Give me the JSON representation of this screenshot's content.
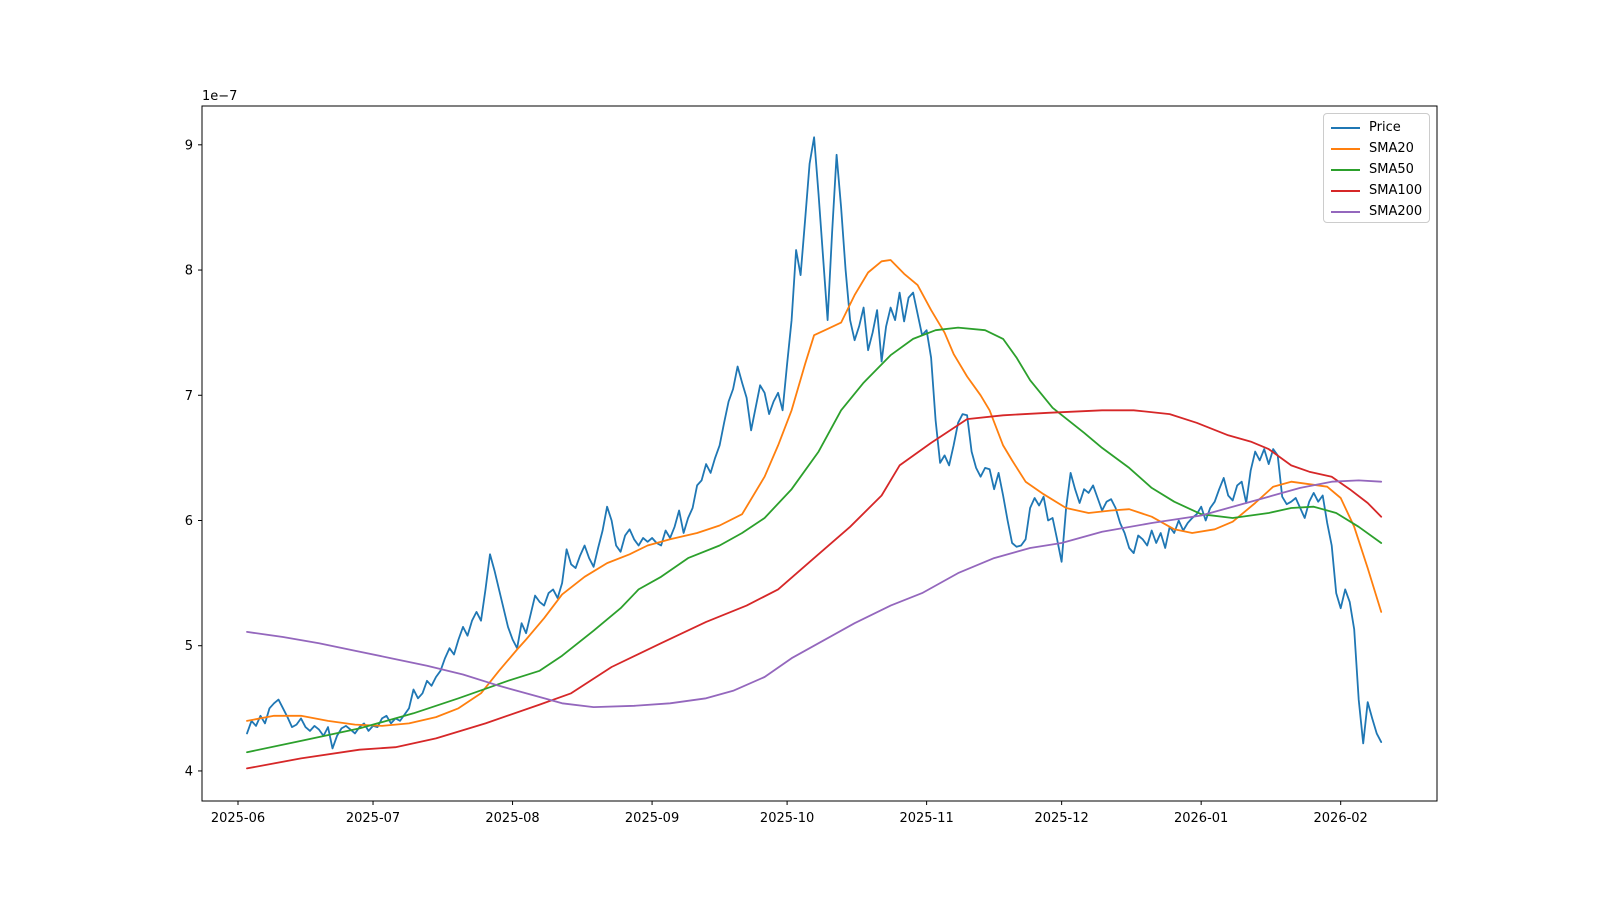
{
  "figure": {
    "background": "#ffffff",
    "axes_color": "#000000"
  },
  "chart_data": {
    "type": "line",
    "title": "",
    "xlabel": "",
    "ylabel": "",
    "y_offset_label": "1e−7",
    "grid": false,
    "legend_position": "upper right",
    "x_unit": "days since 2025-06-03",
    "x_range_dates": [
      "2025-06-03",
      "2026-02-10"
    ],
    "xlim": [
      -10,
      264.4
    ],
    "ylim": [
      3.76,
      9.31
    ],
    "x_ticks": [
      {
        "day": -2,
        "label": "2025-06"
      },
      {
        "day": 28,
        "label": "2025-07"
      },
      {
        "day": 59,
        "label": "2025-08"
      },
      {
        "day": 90,
        "label": "2025-09"
      },
      {
        "day": 120,
        "label": "2025-10"
      },
      {
        "day": 151,
        "label": "2025-11"
      },
      {
        "day": 181,
        "label": "2025-12"
      },
      {
        "day": 212,
        "label": "2026-01"
      },
      {
        "day": 243,
        "label": "2026-02"
      }
    ],
    "y_ticks": [
      {
        "value": 4,
        "label": "4"
      },
      {
        "value": 5,
        "label": "5"
      },
      {
        "value": 6,
        "label": "6"
      },
      {
        "value": 7,
        "label": "7"
      },
      {
        "value": 8,
        "label": "8"
      },
      {
        "value": 9,
        "label": "9"
      }
    ],
    "series": [
      {
        "name": "Price",
        "color": "#1f77b4",
        "x0": 0,
        "dx": 1,
        "values": [
          4.3,
          4.4,
          4.36,
          4.44,
          4.38,
          4.5,
          4.54,
          4.57,
          4.5,
          4.43,
          4.35,
          4.37,
          4.42,
          4.35,
          4.32,
          4.36,
          4.33,
          4.28,
          4.35,
          4.18,
          4.28,
          4.34,
          4.36,
          4.33,
          4.3,
          4.35,
          4.38,
          4.32,
          4.36,
          4.35,
          4.42,
          4.44,
          4.38,
          4.42,
          4.4,
          4.45,
          4.5,
          4.65,
          4.58,
          4.62,
          4.72,
          4.68,
          4.75,
          4.8,
          4.9,
          4.98,
          4.93,
          5.05,
          5.15,
          5.08,
          5.2,
          5.27,
          5.2,
          5.45,
          5.73,
          5.6,
          5.45,
          5.3,
          5.15,
          5.05,
          4.98,
          5.18,
          5.1,
          5.25,
          5.4,
          5.35,
          5.32,
          5.42,
          5.45,
          5.38,
          5.5,
          5.77,
          5.65,
          5.62,
          5.72,
          5.8,
          5.7,
          5.63,
          5.78,
          5.92,
          6.11,
          6.0,
          5.8,
          5.75,
          5.88,
          5.93,
          5.85,
          5.8,
          5.86,
          5.83,
          5.86,
          5.82,
          5.8,
          5.92,
          5.86,
          5.95,
          6.08,
          5.9,
          6.02,
          6.1,
          6.28,
          6.32,
          6.45,
          6.38,
          6.5,
          6.6,
          6.78,
          6.95,
          7.05,
          7.23,
          7.1,
          6.98,
          6.72,
          6.9,
          7.08,
          7.02,
          6.85,
          6.95,
          7.02,
          6.88,
          7.25,
          7.6,
          8.16,
          7.96,
          8.4,
          8.85,
          9.06,
          8.6,
          8.1,
          7.6,
          8.3,
          8.92,
          8.5,
          8.0,
          7.6,
          7.44,
          7.55,
          7.7,
          7.36,
          7.5,
          7.68,
          7.27,
          7.55,
          7.7,
          7.6,
          7.82,
          7.59,
          7.78,
          7.82,
          7.65,
          7.48,
          7.52,
          7.3,
          6.8,
          6.46,
          6.52,
          6.44,
          6.6,
          6.78,
          6.85,
          6.84,
          6.55,
          6.42,
          6.35,
          6.42,
          6.41,
          6.25,
          6.38,
          6.2,
          6.0,
          5.82,
          5.79,
          5.8,
          5.85,
          6.1,
          6.18,
          6.12,
          6.19,
          6.0,
          6.02,
          5.85,
          5.67,
          6.1,
          6.38,
          6.25,
          6.14,
          6.25,
          6.22,
          6.28,
          6.18,
          6.08,
          6.15,
          6.17,
          6.1,
          5.98,
          5.9,
          5.78,
          5.74,
          5.88,
          5.85,
          5.8,
          5.92,
          5.82,
          5.9,
          5.78,
          5.95,
          5.9,
          6.0,
          5.92,
          5.98,
          6.02,
          6.05,
          6.11,
          6.0,
          6.1,
          6.15,
          6.25,
          6.34,
          6.2,
          6.16,
          6.28,
          6.31,
          6.14,
          6.4,
          6.55,
          6.48,
          6.57,
          6.45,
          6.57,
          6.52,
          6.19,
          6.13,
          6.15,
          6.18,
          6.1,
          6.02,
          6.15,
          6.22,
          6.15,
          6.2,
          5.98,
          5.8,
          5.42,
          5.3,
          5.45,
          5.35,
          5.13,
          4.57,
          4.22,
          4.55,
          4.42,
          4.3,
          4.23
        ]
      },
      {
        "name": "SMA20",
        "color": "#ff7f0e",
        "points": [
          [
            0,
            4.4
          ],
          [
            6,
            4.44
          ],
          [
            12,
            4.44
          ],
          [
            18,
            4.4
          ],
          [
            24,
            4.37
          ],
          [
            30,
            4.36
          ],
          [
            36,
            4.38
          ],
          [
            42,
            4.43
          ],
          [
            47,
            4.5
          ],
          [
            52,
            4.62
          ],
          [
            56,
            4.8
          ],
          [
            60,
            4.97
          ],
          [
            62,
            5.05
          ],
          [
            66,
            5.22
          ],
          [
            70,
            5.41
          ],
          [
            75,
            5.55
          ],
          [
            80,
            5.66
          ],
          [
            85,
            5.73
          ],
          [
            89,
            5.8
          ],
          [
            94,
            5.85
          ],
          [
            100,
            5.9
          ],
          [
            105,
            5.96
          ],
          [
            110,
            6.05
          ],
          [
            115,
            6.35
          ],
          [
            118,
            6.6
          ],
          [
            121,
            6.88
          ],
          [
            124,
            7.25
          ],
          [
            126,
            7.48
          ],
          [
            129,
            7.53
          ],
          [
            132,
            7.58
          ],
          [
            135,
            7.8
          ],
          [
            138,
            7.98
          ],
          [
            141,
            8.07
          ],
          [
            143,
            8.08
          ],
          [
            146,
            7.97
          ],
          [
            149,
            7.88
          ],
          [
            152,
            7.68
          ],
          [
            155,
            7.5
          ],
          [
            157,
            7.33
          ],
          [
            160,
            7.15
          ],
          [
            163,
            7.0
          ],
          [
            165,
            6.88
          ],
          [
            168,
            6.6
          ],
          [
            170,
            6.48
          ],
          [
            173,
            6.31
          ],
          [
            177,
            6.21
          ],
          [
            182,
            6.1
          ],
          [
            187,
            6.06
          ],
          [
            192,
            6.08
          ],
          [
            196,
            6.09
          ],
          [
            201,
            6.03
          ],
          [
            206,
            5.93
          ],
          [
            210,
            5.9
          ],
          [
            215,
            5.93
          ],
          [
            219,
            5.99
          ],
          [
            224,
            6.14
          ],
          [
            228,
            6.27
          ],
          [
            232,
            6.31
          ],
          [
            236,
            6.29
          ],
          [
            240,
            6.27
          ],
          [
            243,
            6.18
          ],
          [
            246,
            5.95
          ],
          [
            249,
            5.62
          ],
          [
            252,
            5.27
          ]
        ]
      },
      {
        "name": "SMA50",
        "color": "#2ca02c",
        "points": [
          [
            0,
            4.15
          ],
          [
            12,
            4.24
          ],
          [
            25,
            4.34
          ],
          [
            37,
            4.46
          ],
          [
            47,
            4.58
          ],
          [
            58,
            4.72
          ],
          [
            65,
            4.8
          ],
          [
            70,
            4.92
          ],
          [
            77,
            5.12
          ],
          [
            83,
            5.3
          ],
          [
            87,
            5.45
          ],
          [
            92,
            5.55
          ],
          [
            98,
            5.7
          ],
          [
            105,
            5.8
          ],
          [
            110,
            5.9
          ],
          [
            115,
            6.02
          ],
          [
            121,
            6.25
          ],
          [
            127,
            6.55
          ],
          [
            132,
            6.88
          ],
          [
            137,
            7.1
          ],
          [
            143,
            7.32
          ],
          [
            148,
            7.45
          ],
          [
            153,
            7.52
          ],
          [
            158,
            7.54
          ],
          [
            164,
            7.52
          ],
          [
            168,
            7.45
          ],
          [
            171,
            7.3
          ],
          [
            174,
            7.12
          ],
          [
            179,
            6.9
          ],
          [
            186,
            6.7
          ],
          [
            190,
            6.58
          ],
          [
            196,
            6.42
          ],
          [
            201,
            6.26
          ],
          [
            206,
            6.15
          ],
          [
            212,
            6.05
          ],
          [
            219,
            6.02
          ],
          [
            227,
            6.06
          ],
          [
            232,
            6.1
          ],
          [
            237,
            6.11
          ],
          [
            242,
            6.06
          ],
          [
            247,
            5.95
          ],
          [
            252,
            5.82
          ]
        ]
      },
      {
        "name": "SMA100",
        "color": "#d62728",
        "points": [
          [
            0,
            4.02
          ],
          [
            12,
            4.1
          ],
          [
            25,
            4.17
          ],
          [
            33,
            4.19
          ],
          [
            42,
            4.26
          ],
          [
            53,
            4.38
          ],
          [
            65,
            4.53
          ],
          [
            72,
            4.62
          ],
          [
            81,
            4.83
          ],
          [
            92,
            5.02
          ],
          [
            102,
            5.19
          ],
          [
            111,
            5.32
          ],
          [
            118,
            5.45
          ],
          [
            126,
            5.7
          ],
          [
            134,
            5.95
          ],
          [
            141,
            6.2
          ],
          [
            145,
            6.44
          ],
          [
            152,
            6.62
          ],
          [
            160,
            6.81
          ],
          [
            168,
            6.84
          ],
          [
            178,
            6.86
          ],
          [
            190,
            6.88
          ],
          [
            197,
            6.88
          ],
          [
            205,
            6.85
          ],
          [
            211,
            6.78
          ],
          [
            218,
            6.68
          ],
          [
            223,
            6.63
          ],
          [
            227,
            6.57
          ],
          [
            232,
            6.44
          ],
          [
            236,
            6.39
          ],
          [
            241,
            6.35
          ],
          [
            245,
            6.25
          ],
          [
            249,
            6.14
          ],
          [
            252,
            6.03
          ]
        ]
      },
      {
        "name": "SMA200",
        "color": "#9467bd",
        "points": [
          [
            0,
            5.11
          ],
          [
            8,
            5.07
          ],
          [
            16,
            5.02
          ],
          [
            24,
            4.96
          ],
          [
            32,
            4.9
          ],
          [
            40,
            4.84
          ],
          [
            48,
            4.77
          ],
          [
            56,
            4.68
          ],
          [
            64,
            4.6
          ],
          [
            70,
            4.54
          ],
          [
            77,
            4.51
          ],
          [
            86,
            4.52
          ],
          [
            94,
            4.54
          ],
          [
            102,
            4.58
          ],
          [
            108,
            4.64
          ],
          [
            115,
            4.75
          ],
          [
            121,
            4.9
          ],
          [
            128,
            5.04
          ],
          [
            135,
            5.18
          ],
          [
            143,
            5.32
          ],
          [
            150,
            5.42
          ],
          [
            158,
            5.58
          ],
          [
            166,
            5.7
          ],
          [
            174,
            5.78
          ],
          [
            181,
            5.82
          ],
          [
            190,
            5.91
          ],
          [
            201,
            5.98
          ],
          [
            212,
            6.04
          ],
          [
            220,
            6.12
          ],
          [
            227,
            6.19
          ],
          [
            234,
            6.26
          ],
          [
            241,
            6.31
          ],
          [
            247,
            6.32
          ],
          [
            252,
            6.31
          ]
        ]
      }
    ]
  }
}
